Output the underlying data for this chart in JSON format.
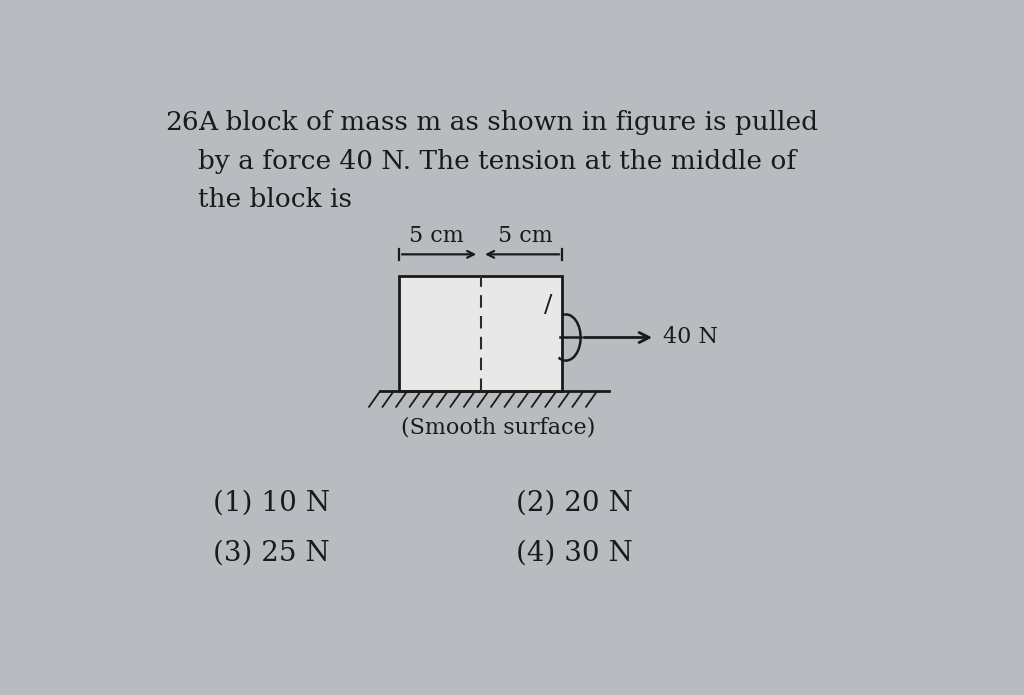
{
  "background_color": "#b8bcc0",
  "question_number": "26.",
  "question_text_line1": "A block of mass m as shown in figure is pulled",
  "question_text_line2": "by a force 40 N. The tension at the middle of",
  "question_text_line3": "the block is",
  "label_5cm_left": "5 cm",
  "label_5cm_right": "5 cm",
  "force_label": "40 N",
  "surface_label": "(Smooth surface)",
  "options": [
    "(1) 10 N",
    "(2) 20 N",
    "(3) 25 N",
    "(4) 30 N"
  ],
  "text_color": "#1a1a1a",
  "block_color": "#e8e8e8",
  "block_edge_color": "#1a1a1a",
  "dashed_line_color": "#2a2a2a",
  "arrow_color": "#1a1a1a",
  "hatch_color": "#1a1a1a",
  "font_size_question": 19,
  "font_size_options": 20,
  "font_size_labels": 16,
  "font_size_force": 16,
  "font_size_surface": 16
}
